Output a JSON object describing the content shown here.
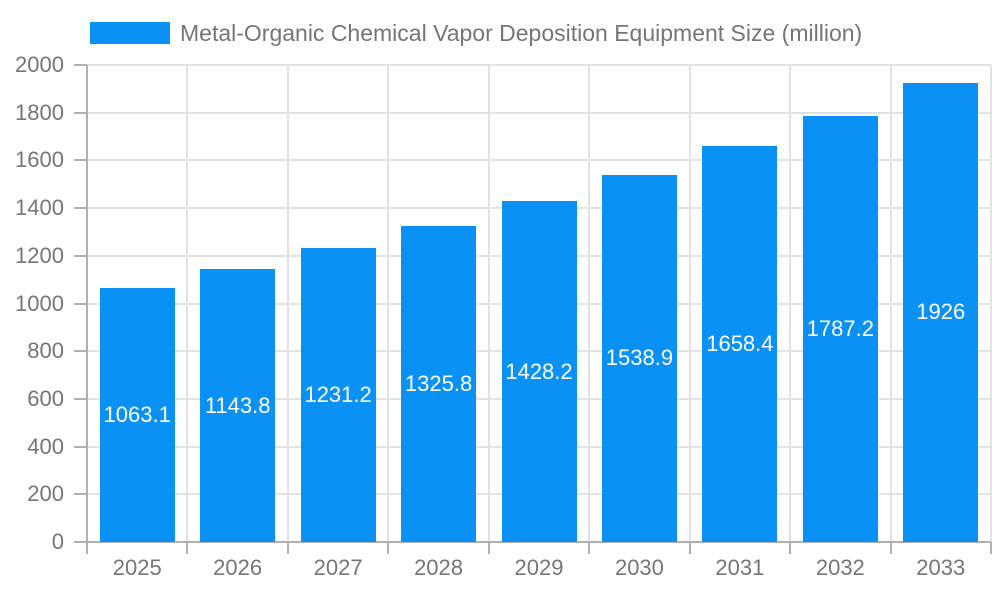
{
  "legend": {
    "label": "Metal-Organic Chemical Vapor Deposition Equipment Size (million)"
  },
  "chart_data": {
    "type": "bar",
    "title": "Metal-Organic Chemical Vapor Deposition Equipment Size (million)",
    "categories": [
      "2025",
      "2026",
      "2027",
      "2028",
      "2029",
      "2030",
      "2031",
      "2032",
      "2033"
    ],
    "values": [
      1063.1,
      1143.8,
      1231.2,
      1325.8,
      1428.2,
      1538.9,
      1658.4,
      1787.2,
      1926
    ],
    "value_labels": [
      "1063.1",
      "1143.8",
      "1231.2",
      "1325.8",
      "1428.2",
      "1538.9",
      "1658.4",
      "1787.2",
      "1926"
    ],
    "xlabel": "",
    "ylabel": "",
    "ylim": [
      0,
      2000
    ],
    "ytick_step": 200,
    "grid": true,
    "legend_position": "top-left",
    "colors": {
      "bar": "#0991f6",
      "gridline": "#e2e2e2",
      "axis": "#b0b0b0",
      "tick_text": "#757575",
      "bar_label_text": "#ffffff",
      "background": "#ffffff"
    }
  }
}
